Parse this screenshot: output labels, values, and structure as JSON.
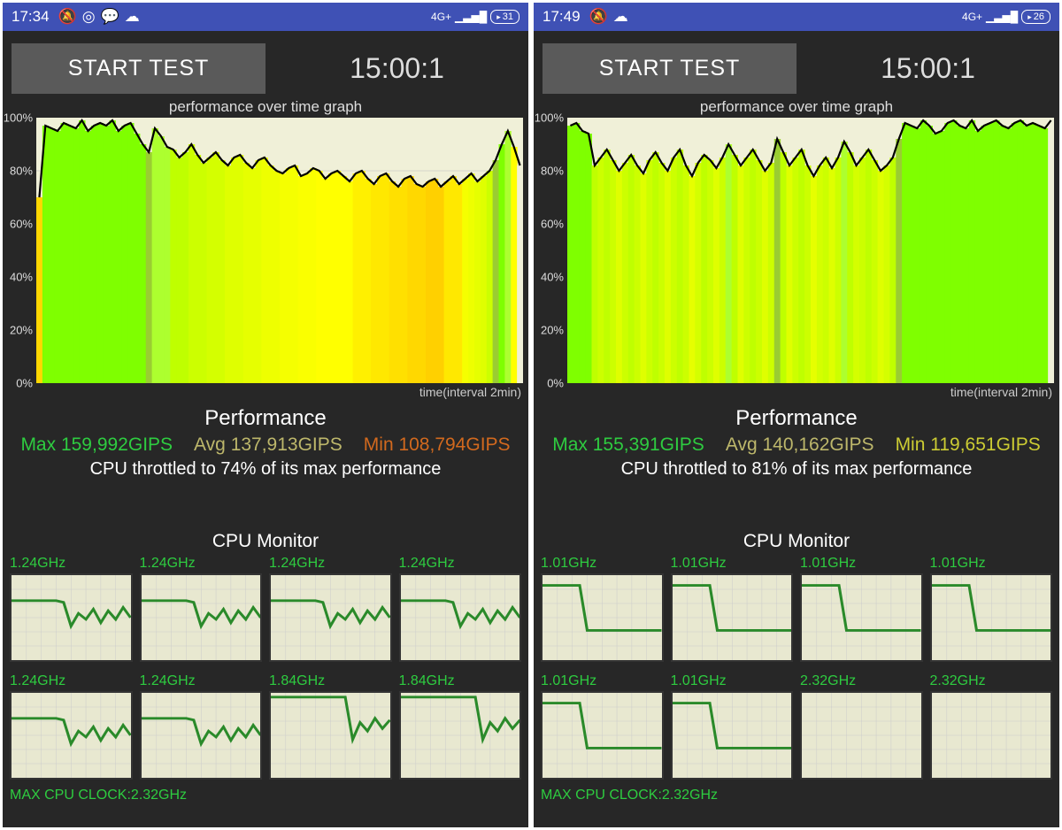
{
  "left": {
    "statusbar": {
      "time": "17:34",
      "network": "4G+",
      "signal": "▁▃▅█",
      "battery": "31"
    },
    "start_label": "START TEST",
    "timer": "15:00:1",
    "chart": {
      "title": "performance over time graph",
      "bg": "#f0f0d8",
      "line_color": "#000000",
      "ylim": [
        0,
        100
      ],
      "ytick_step": 20,
      "xlabel": "time(interval 2min)",
      "values": [
        70,
        97,
        96,
        95,
        98,
        97,
        96,
        99,
        95,
        97,
        98,
        97,
        99,
        95,
        97,
        98,
        94,
        90,
        87,
        96,
        93,
        89,
        88,
        85,
        87,
        90,
        86,
        83,
        85,
        87,
        84,
        82,
        85,
        86,
        83,
        81,
        84,
        85,
        82,
        80,
        79,
        81,
        82,
        78,
        79,
        81,
        80,
        77,
        79,
        80,
        78,
        76,
        79,
        80,
        77,
        75,
        78,
        79,
        76,
        74,
        77,
        78,
        75,
        74,
        76,
        77,
        74,
        76,
        78,
        75,
        77,
        79,
        76,
        78,
        80,
        84,
        90,
        95,
        89,
        82
      ],
      "colors": [
        "#ffd700",
        "#7fff00",
        "#7fff00",
        "#7fff00",
        "#7fff00",
        "#7fff00",
        "#7fff00",
        "#7fff00",
        "#7fff00",
        "#7fff00",
        "#7fff00",
        "#7fff00",
        "#7fff00",
        "#7fff00",
        "#7fff00",
        "#7fff00",
        "#7fff00",
        "#7fff00",
        "#9acd32",
        "#adff2f",
        "#adff2f",
        "#adff2f",
        "#bfff00",
        "#bfff00",
        "#bfff00",
        "#ccff00",
        "#ccff00",
        "#ccff00",
        "#d4ff00",
        "#d4ff00",
        "#d4ff00",
        "#dfff00",
        "#dfff00",
        "#dfff00",
        "#e6ff00",
        "#e6ff00",
        "#e6ff00",
        "#eeff00",
        "#eeff00",
        "#eeff00",
        "#f5ff00",
        "#f5ff00",
        "#f5ff00",
        "#faff00",
        "#faff00",
        "#faff00",
        "#ffff00",
        "#ffff00",
        "#ffff00",
        "#ffff00",
        "#ffff00",
        "#ffff00",
        "#fff000",
        "#fff000",
        "#fff000",
        "#ffe800",
        "#ffe800",
        "#ffe800",
        "#ffe000",
        "#ffe000",
        "#ffe000",
        "#ffd800",
        "#ffd800",
        "#ffd800",
        "#ffd000",
        "#ffd000",
        "#ffd000",
        "#ffe800",
        "#ffe800",
        "#ffe800",
        "#f5ff00",
        "#eeff00",
        "#e6ff00",
        "#dfff00",
        "#ccff00",
        "#9acd32",
        "#7fff00",
        "#adff2f",
        "#ffff00",
        "#f0f0d8"
      ]
    },
    "perf": {
      "title": "Performance",
      "max": "Max 159,992GIPS",
      "avg": "Avg 137,913GIPS",
      "min": "Min 108,794GIPS",
      "min_color": "orange",
      "throttle": "CPU throttled to 74% of its max performance"
    },
    "cpu_monitor_title": "CPU Monitor",
    "cpu_cores": [
      {
        "freq": "1.24GHz",
        "line": [
          70,
          70,
          70,
          70,
          70,
          70,
          70,
          68,
          40,
          55,
          48,
          60,
          44,
          58,
          48,
          62,
          50
        ]
      },
      {
        "freq": "1.24GHz",
        "line": [
          70,
          70,
          70,
          70,
          70,
          70,
          70,
          68,
          40,
          55,
          48,
          60,
          44,
          58,
          48,
          62,
          50
        ]
      },
      {
        "freq": "1.24GHz",
        "line": [
          70,
          70,
          70,
          70,
          70,
          70,
          70,
          68,
          40,
          55,
          48,
          60,
          44,
          58,
          48,
          62,
          50
        ]
      },
      {
        "freq": "1.24GHz",
        "line": [
          70,
          70,
          70,
          70,
          70,
          70,
          70,
          68,
          40,
          55,
          48,
          60,
          44,
          58,
          48,
          62,
          50
        ]
      },
      {
        "freq": "1.24GHz",
        "line": [
          70,
          70,
          70,
          70,
          70,
          70,
          70,
          68,
          40,
          55,
          48,
          60,
          44,
          58,
          48,
          62,
          50
        ]
      },
      {
        "freq": "1.24GHz",
        "line": [
          70,
          70,
          70,
          70,
          70,
          70,
          70,
          68,
          40,
          55,
          48,
          60,
          44,
          58,
          48,
          62,
          50
        ]
      },
      {
        "freq": "1.84GHz",
        "line": [
          95,
          95,
          95,
          95,
          95,
          95,
          95,
          95,
          95,
          95,
          95,
          45,
          65,
          55,
          70,
          58,
          68
        ]
      },
      {
        "freq": "1.84GHz",
        "line": [
          95,
          95,
          95,
          95,
          95,
          95,
          95,
          95,
          95,
          95,
          95,
          45,
          65,
          55,
          70,
          58,
          68
        ]
      }
    ],
    "max_clock": "MAX CPU CLOCK:2.32GHz"
  },
  "right": {
    "statusbar": {
      "time": "17:49",
      "network": "4G+",
      "signal": "▁▃▅█",
      "battery": "26"
    },
    "start_label": "START TEST",
    "timer": "15:00:1",
    "chart": {
      "title": "performance over time graph",
      "bg": "#f0f0d8",
      "line_color": "#000000",
      "ylim": [
        0,
        100
      ],
      "ytick_step": 20,
      "xlabel": "time(interval 2min)",
      "values": [
        97,
        98,
        95,
        94,
        82,
        85,
        88,
        84,
        80,
        83,
        86,
        82,
        79,
        84,
        87,
        83,
        80,
        85,
        88,
        82,
        78,
        83,
        86,
        84,
        81,
        85,
        90,
        86,
        82,
        85,
        88,
        84,
        80,
        83,
        92,
        87,
        82,
        85,
        88,
        82,
        78,
        82,
        85,
        81,
        85,
        91,
        87,
        82,
        85,
        88,
        84,
        80,
        82,
        85,
        92,
        98,
        97,
        96,
        99,
        97,
        94,
        95,
        98,
        99,
        97,
        96,
        99,
        95,
        97,
        98,
        99,
        97,
        96,
        98,
        99,
        97,
        98,
        97,
        96,
        99
      ],
      "colors": [
        "#7fff00",
        "#7fff00",
        "#7fff00",
        "#7fff00",
        "#bfff00",
        "#ccff00",
        "#bfff00",
        "#ccff00",
        "#dfff00",
        "#ccff00",
        "#bfff00",
        "#ccff00",
        "#dfff00",
        "#ccff00",
        "#bfff00",
        "#ccff00",
        "#dfff00",
        "#ccff00",
        "#bfff00",
        "#ccff00",
        "#e6ff00",
        "#d4ff00",
        "#bfff00",
        "#ccff00",
        "#dfff00",
        "#ccff00",
        "#adff2f",
        "#bfff00",
        "#dfff00",
        "#ccff00",
        "#bfff00",
        "#ccff00",
        "#dfff00",
        "#ccff00",
        "#9acd32",
        "#bfff00",
        "#dfff00",
        "#ccff00",
        "#bfff00",
        "#ccff00",
        "#e6ff00",
        "#d4ff00",
        "#ccff00",
        "#dfff00",
        "#ccff00",
        "#adff2f",
        "#bfff00",
        "#d4ff00",
        "#ccff00",
        "#bfff00",
        "#ccff00",
        "#dfff00",
        "#d4ff00",
        "#bfff00",
        "#9acd32",
        "#7fff00",
        "#7fff00",
        "#7fff00",
        "#7fff00",
        "#7fff00",
        "#7fff00",
        "#7fff00",
        "#7fff00",
        "#7fff00",
        "#7fff00",
        "#7fff00",
        "#7fff00",
        "#7fff00",
        "#7fff00",
        "#7fff00",
        "#7fff00",
        "#7fff00",
        "#7fff00",
        "#7fff00",
        "#7fff00",
        "#7fff00",
        "#7fff00",
        "#7fff00",
        "#7fff00",
        "#f0f0d8"
      ]
    },
    "perf": {
      "title": "Performance",
      "max": "Max 155,391GIPS",
      "avg": "Avg 140,162GIPS",
      "min": "Min 119,651GIPS",
      "min_color": "yellow",
      "throttle": "CPU throttled to 81% of its max performance"
    },
    "cpu_monitor_title": "CPU Monitor",
    "cpu_cores": [
      {
        "freq": "1.01GHz",
        "line": [
          88,
          88,
          88,
          88,
          88,
          88,
          35,
          35,
          35,
          35,
          35,
          35,
          35,
          35,
          35,
          35,
          35
        ]
      },
      {
        "freq": "1.01GHz",
        "line": [
          88,
          88,
          88,
          88,
          88,
          88,
          35,
          35,
          35,
          35,
          35,
          35,
          35,
          35,
          35,
          35,
          35
        ]
      },
      {
        "freq": "1.01GHz",
        "line": [
          88,
          88,
          88,
          88,
          88,
          88,
          35,
          35,
          35,
          35,
          35,
          35,
          35,
          35,
          35,
          35,
          35
        ]
      },
      {
        "freq": "1.01GHz",
        "line": [
          88,
          88,
          88,
          88,
          88,
          88,
          35,
          35,
          35,
          35,
          35,
          35,
          35,
          35,
          35,
          35,
          35
        ]
      },
      {
        "freq": "1.01GHz",
        "line": [
          88,
          88,
          88,
          88,
          88,
          88,
          35,
          35,
          35,
          35,
          35,
          35,
          35,
          35,
          35,
          35,
          35
        ]
      },
      {
        "freq": "1.01GHz",
        "line": [
          88,
          88,
          88,
          88,
          88,
          88,
          35,
          35,
          35,
          35,
          35,
          35,
          35,
          35,
          35,
          35,
          35
        ]
      },
      {
        "freq": "2.32GHz",
        "line": []
      },
      {
        "freq": "2.32GHz",
        "line": []
      }
    ],
    "max_clock": "MAX CPU CLOCK:2.32GHz"
  }
}
